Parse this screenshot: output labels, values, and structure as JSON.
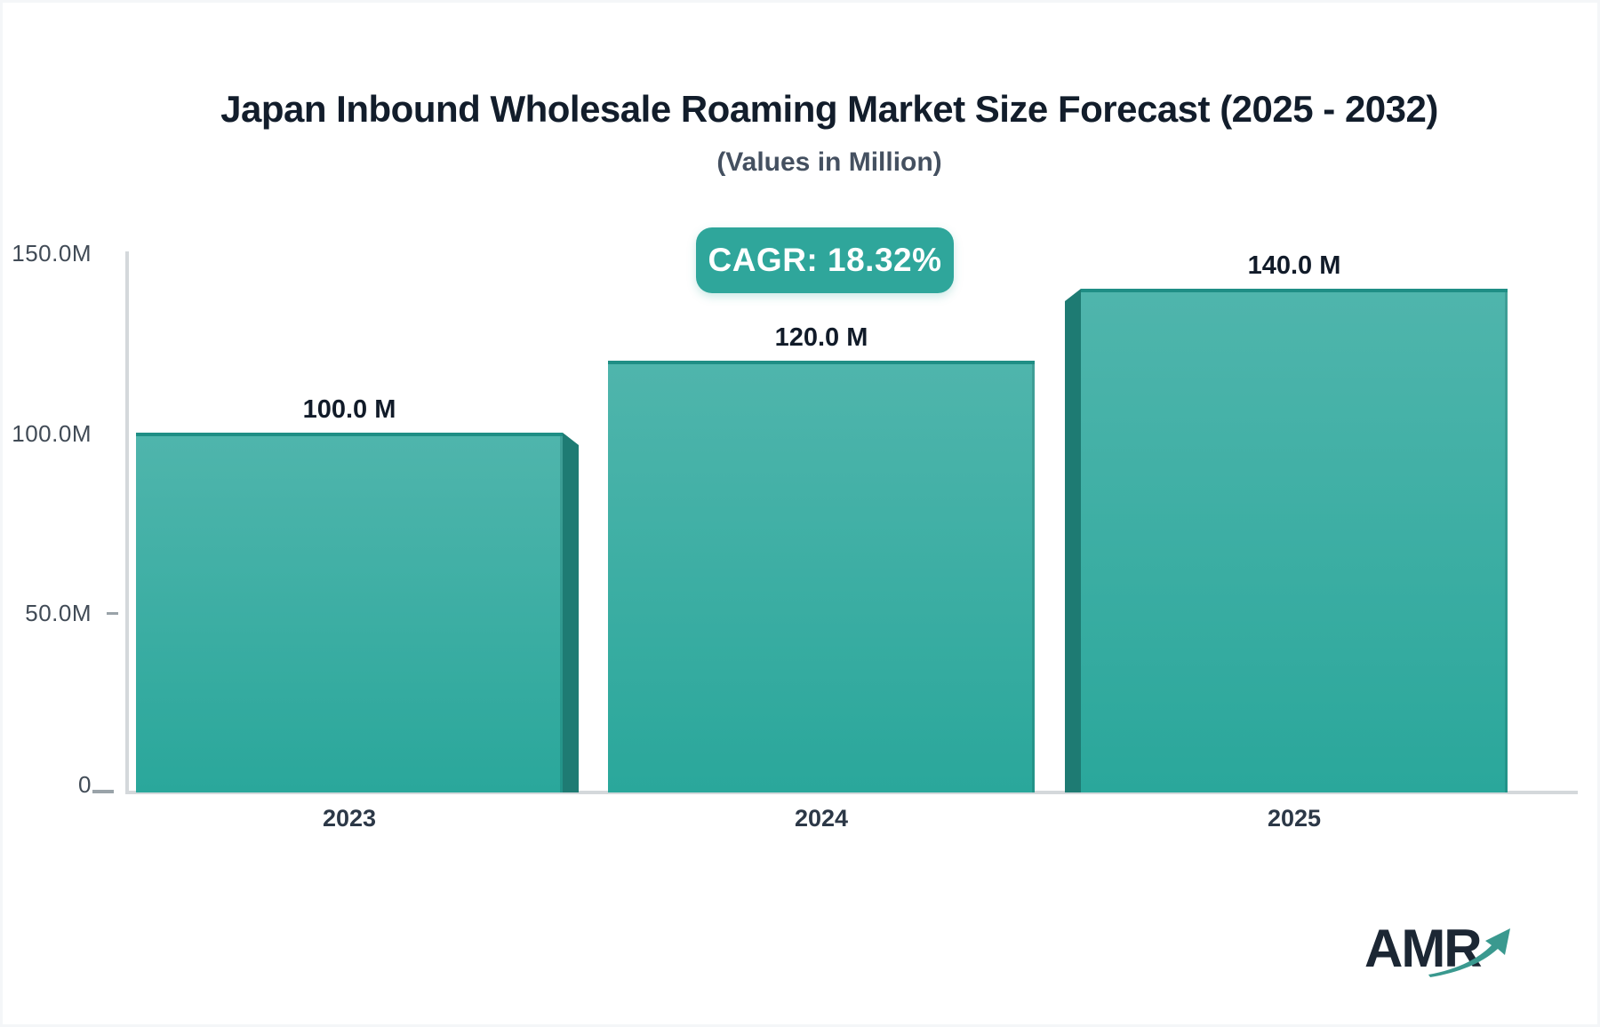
{
  "header": {
    "title": "Japan Inbound Wholesale Roaming Market Size Forecast (2025 - 2032)",
    "subtitle": "(Values in Million)"
  },
  "badge": {
    "label": "CAGR: 18.32%",
    "bg_color": "#2fa69b",
    "text_color": "#ffffff"
  },
  "chart_data": {
    "type": "bar",
    "title": "Japan Inbound Wholesale Roaming Market Size Forecast (2025 - 2032)",
    "subtitle": "(Values in Million)",
    "unit": "Million",
    "categories": [
      "2023",
      "2024",
      "2025"
    ],
    "values": [
      100.0,
      120.0,
      140.0
    ],
    "value_labels": [
      "100.0 M",
      "120.0 M",
      "140.0 M"
    ],
    "cagr_label": "CAGR: 18.32%",
    "ylim": [
      0,
      150
    ],
    "yticks": [
      150,
      100,
      50,
      0
    ],
    "ytick_labels": [
      "150.0M",
      "100.0M",
      "50.0M",
      "0"
    ],
    "grid": false,
    "legend": "none",
    "colors": {
      "bar_top": "#4fb5ac",
      "bar_bottom": "#2aa79b",
      "bar_top_edge": "#1f8e85",
      "bar_side": "#1e7b73",
      "axis": "#d4d8db"
    }
  },
  "logo": {
    "text": "AMR",
    "icon": "trend-arrow-icon",
    "text_color": "#1c2734",
    "arrow_color": "#3a998f"
  }
}
